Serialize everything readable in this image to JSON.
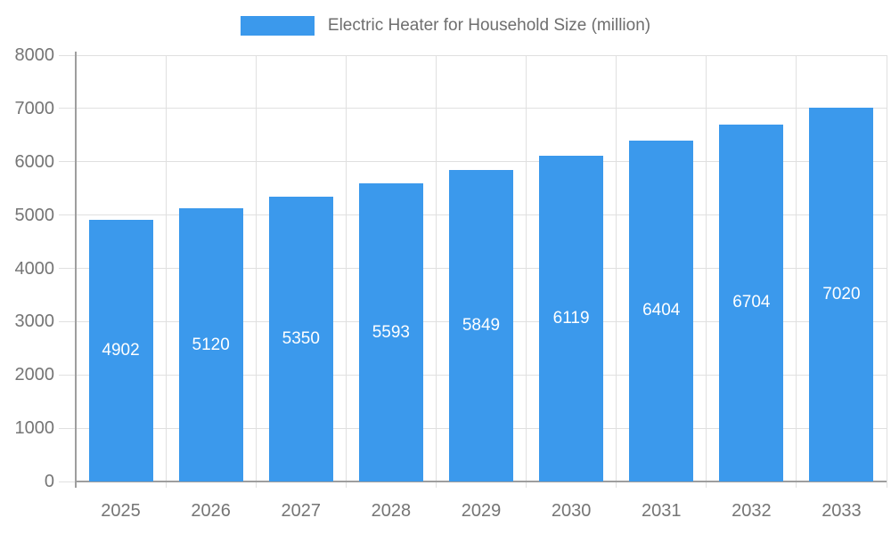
{
  "legend": {
    "label": "Electric Heater for Household Size (million)",
    "position": "top"
  },
  "chart_data": {
    "type": "bar",
    "title": "Electric Heater for Household Size (million)",
    "categories": [
      "2025",
      "2026",
      "2027",
      "2028",
      "2029",
      "2030",
      "2031",
      "2032",
      "2033"
    ],
    "values": [
      4902,
      5120,
      5350,
      5593,
      5849,
      6119,
      6404,
      6704,
      7020
    ],
    "series": [
      {
        "name": "Electric Heater for Household Size (million)",
        "values": [
          4902,
          5120,
          5350,
          5593,
          5849,
          6119,
          6404,
          6704,
          7020
        ]
      }
    ],
    "xlabel": "",
    "ylabel": "",
    "ylim": [
      0,
      8000
    ],
    "yticks": [
      0,
      1000,
      2000,
      3000,
      4000,
      5000,
      6000,
      7000,
      8000
    ],
    "grid": true,
    "legend_position": "top",
    "value_labels": "inside-center",
    "bar_color": "#3b99ec",
    "colors": {
      "grid": "#e0e0e0",
      "axis": "#9e9e9e",
      "tick_label": "#757575",
      "legend_text": "#6e6e6e",
      "value_label": "#ffffff",
      "background": "#ffffff"
    }
  }
}
